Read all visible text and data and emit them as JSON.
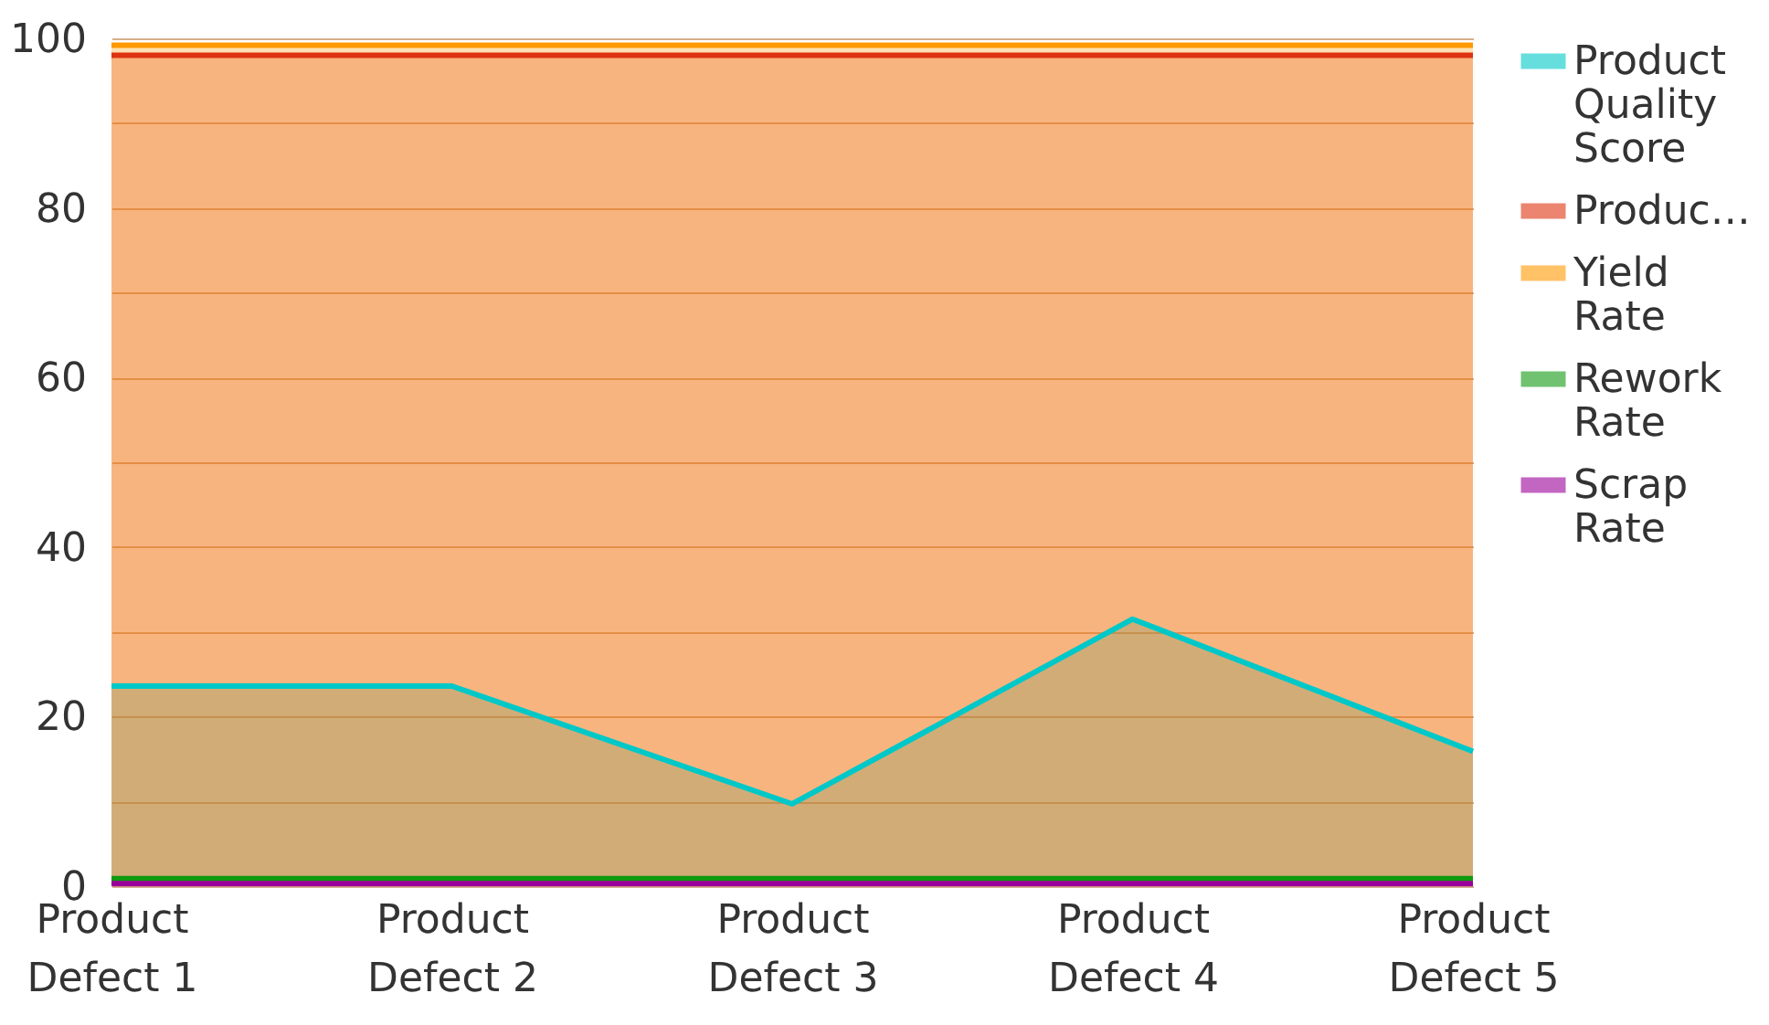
{
  "chart_data": {
    "type": "area",
    "categories": [
      "Product Defect 1",
      "Product Defect 2",
      "Product Defect 3",
      "Product Defect 4",
      "Product Defect 5"
    ],
    "series": [
      {
        "name": "Product Quality Score",
        "color": "#00c8c8",
        "values": [
          23.6,
          23.6,
          9.7,
          31.5,
          15.9
        ]
      },
      {
        "name": "Produc…",
        "color": "#dd3311",
        "values": [
          98,
          98,
          98,
          98,
          98
        ]
      },
      {
        "name": "Yield Rate",
        "color": "#ff9900",
        "values": [
          99.2,
          99.2,
          99.2,
          99.2,
          99.2
        ]
      },
      {
        "name": "Rework Rate",
        "color": "#119911",
        "values": [
          0.9,
          0.9,
          0.9,
          0.9,
          0.9
        ]
      },
      {
        "name": "Scrap Rate",
        "color": "#990099",
        "values": [
          0.3,
          0.3,
          0.3,
          0.3,
          0.3
        ]
      }
    ],
    "ylim": [
      0,
      100
    ],
    "yticks": [
      0,
      {
        "value": 10,
        "label": null
      },
      20,
      {
        "value": 30,
        "label": null
      },
      40,
      {
        "value": 50,
        "label": null
      },
      60,
      {
        "value": 70,
        "label": null
      },
      80,
      {
        "value": 90,
        "label": null
      },
      100
    ],
    "grid": "y",
    "legend": "right"
  }
}
